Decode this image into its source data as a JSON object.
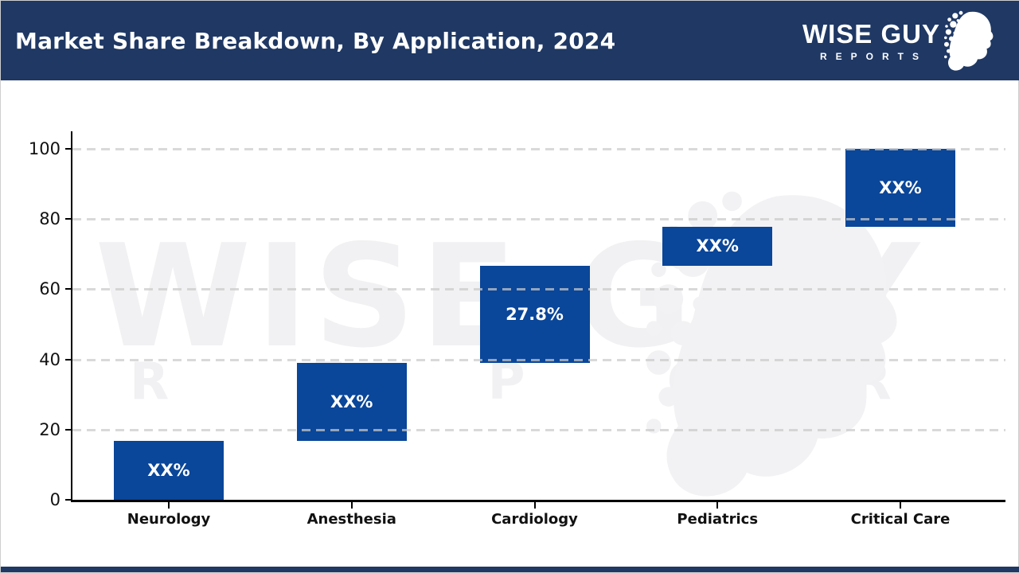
{
  "header": {
    "title": "Market Share Breakdown, By Application, 2024",
    "logo": {
      "line1": "WISE GUY",
      "line2": "REPORTS"
    }
  },
  "watermark": {
    "line1": "WISE GUY",
    "line2": "R E P O R T S"
  },
  "colors": {
    "header_bg": "#1f3864",
    "footer_bg": "#1f3864",
    "bar": "#0a4699",
    "bar_label": "#ffffff",
    "gridline": "#cacaca",
    "axis": "#000000",
    "watermark": "#f1f1f3"
  },
  "chart_data": {
    "type": "bar",
    "subtype": "waterfall",
    "title": "Market Share Breakdown, By Application, 2024",
    "categories": [
      "Neurology",
      "Anesthesia",
      "Cardiology",
      "Pediatrics",
      "Critical Care"
    ],
    "segments": [
      {
        "category": "Neurology",
        "start": 0,
        "end": 16.7,
        "label": "XX%"
      },
      {
        "category": "Anesthesia",
        "start": 16.7,
        "end": 38.9,
        "label": "XX%"
      },
      {
        "category": "Cardiology",
        "start": 38.9,
        "end": 66.7,
        "label": "27.8%"
      },
      {
        "category": "Pediatrics",
        "start": 66.7,
        "end": 77.8,
        "label": "XX%"
      },
      {
        "category": "Critical Care",
        "start": 77.8,
        "end": 100,
        "label": "XX%"
      }
    ],
    "yticks": [
      0,
      20,
      40,
      60,
      80,
      100
    ],
    "ylim": [
      0,
      105
    ],
    "xlabel": "",
    "ylabel": "",
    "grid": "horizontal-dashed",
    "legend": "none"
  }
}
